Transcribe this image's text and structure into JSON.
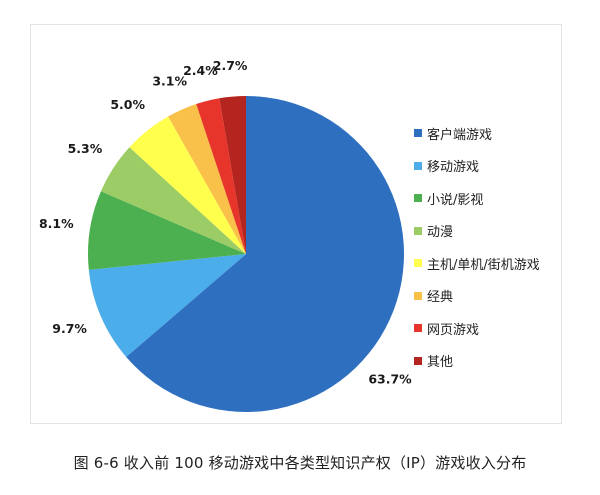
{
  "chart_data": {
    "type": "pie",
    "title": "图 6-6  收入前 100 移动游戏中各类型知识产权（IP）游戏收入分布",
    "categories": [
      "客户端游戏",
      "移动游戏",
      "小说/影视",
      "动漫",
      "主机/单机/街机游戏",
      "经典",
      "网页游戏",
      "其他"
    ],
    "values": [
      63.7,
      9.7,
      8.1,
      5.3,
      5.0,
      3.1,
      2.4,
      2.7
    ],
    "value_labels": [
      "63.7%",
      "9.7%",
      "8.1%",
      "5.3%",
      "5.0%",
      "3.1%",
      "2.4%",
      "2.7%"
    ],
    "colors": [
      "#2e6fc0",
      "#4badea",
      "#4caf50",
      "#9ccc65",
      "#ffff4d",
      "#f9c04a",
      "#e8352b",
      "#b52520"
    ],
    "start_angle": "12 o'clock",
    "direction": "clockwise",
    "legend_position": "right",
    "unit": "%"
  },
  "legend": {
    "items": [
      {
        "label": "客户端游戏",
        "color": "#2e6fc0"
      },
      {
        "label": "移动游戏",
        "color": "#4badea"
      },
      {
        "label": "小说/影视",
        "color": "#4caf50"
      },
      {
        "label": "动漫",
        "color": "#9ccc65"
      },
      {
        "label": "主机/单机/街机游戏",
        "color": "#ffff4d"
      },
      {
        "label": "经典",
        "color": "#f9c04a"
      },
      {
        "label": "网页游戏",
        "color": "#e8352b"
      },
      {
        "label": "其他",
        "color": "#b52520"
      }
    ]
  },
  "caption": "图 6-6  收入前 100 移动游戏中各类型知识产权（IP）游戏收入分布"
}
